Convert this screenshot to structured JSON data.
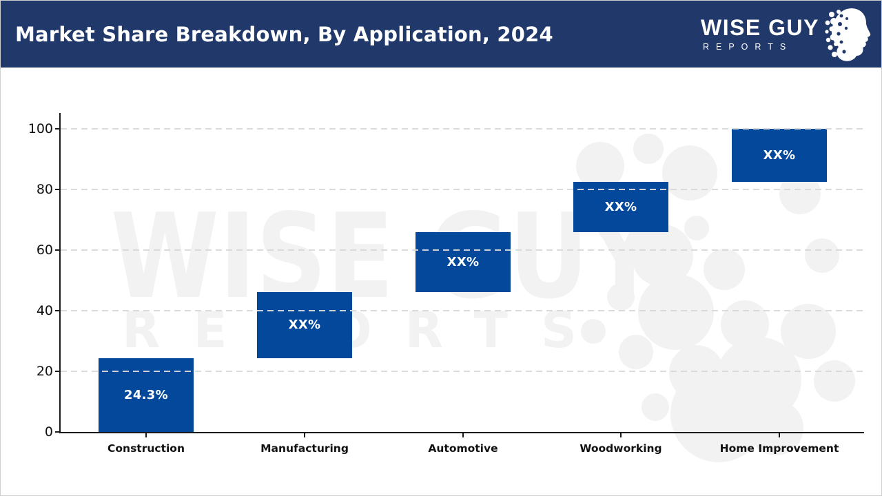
{
  "header": {
    "title": "Market Share Breakdown, By Application, 2024",
    "logo": {
      "brand": "WISE GUY",
      "sub": "REPORTS"
    }
  },
  "watermark": {
    "brand": "WISE GUY",
    "sub": "REPORTS"
  },
  "colors": {
    "header_bg": "#21386b",
    "bar": "#04489c",
    "grid": "#d9d9d9",
    "axis": "#1a1a1a",
    "title_text": "#ffffff",
    "bar_label_text": "#ffffff",
    "watermark": "#f2f2f2"
  },
  "chart_data": {
    "type": "bar",
    "variant": "floating-waterfall",
    "title": "Market Share Breakdown, By Application, 2024",
    "categories": [
      "Construction",
      "Manufacturing",
      "Automotive",
      "Woodworking",
      "Home Improvement"
    ],
    "bar_ranges": [
      [
        0,
        24.3
      ],
      [
        24.3,
        46.2
      ],
      [
        46.2,
        65.8
      ],
      [
        65.8,
        82.5
      ],
      [
        82.5,
        100
      ]
    ],
    "bar_labels": [
      "24.3%",
      "XX%",
      "XX%",
      "XX%",
      "XX%"
    ],
    "yticks": [
      "0",
      "20",
      "40",
      "60",
      "80",
      "100"
    ],
    "ytick_values": [
      0,
      20,
      40,
      60,
      80,
      100
    ],
    "ylim": [
      0,
      105
    ],
    "xlabel": "",
    "ylabel": "",
    "grid": "horizontal-dashed",
    "legend": false,
    "bar_color": "#04489c"
  }
}
